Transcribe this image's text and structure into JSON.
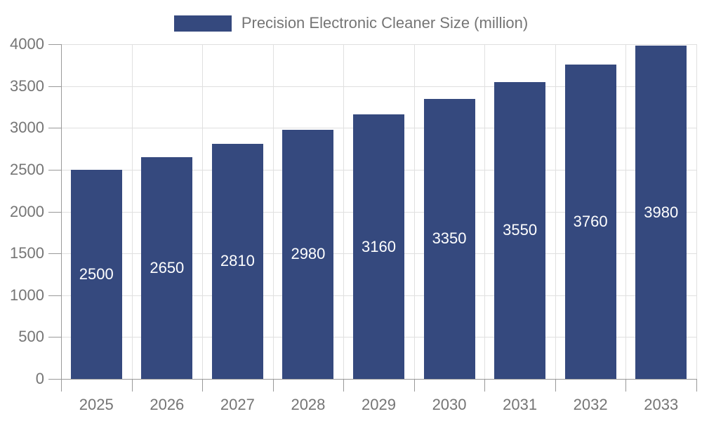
{
  "legend": {
    "label": "Precision Electronic Cleaner Size (million)"
  },
  "chart_data": {
    "type": "bar",
    "title": "Precision Electronic Cleaner Size (million)",
    "categories": [
      "2025",
      "2026",
      "2027",
      "2028",
      "2029",
      "2030",
      "2031",
      "2032",
      "2033"
    ],
    "values": [
      2500,
      2650,
      2810,
      2980,
      3160,
      3350,
      3550,
      3760,
      3980
    ],
    "xlabel": "",
    "ylabel": "",
    "ylim": [
      0,
      4000
    ],
    "yticks": [
      0,
      500,
      1000,
      1500,
      2000,
      2500,
      3000,
      3500,
      4000
    ],
    "grid": true,
    "legend_position": "top",
    "bar_color": "#35497E",
    "value_label_color": "#FFFFFF",
    "axis_text_color": "#757575",
    "gridline_color": "#E0E0E0",
    "axis_line_color": "#999999"
  }
}
